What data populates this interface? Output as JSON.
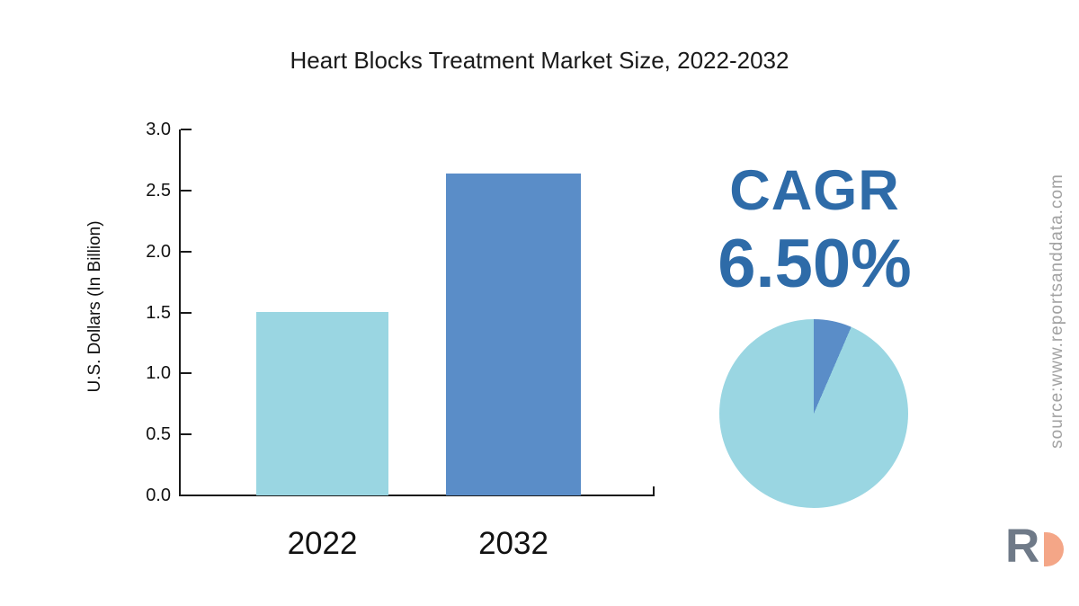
{
  "title": "Heart Blocks Treatment Market Size, 2022-2032",
  "chart_data": [
    {
      "type": "bar",
      "title": "Heart Blocks Treatment Market Size, 2022-2032",
      "categories": [
        "2022",
        "2032"
      ],
      "values": [
        1.5,
        2.64
      ],
      "xlabel": "",
      "ylabel": "U.S. Dollars (In Billion)",
      "ylim": [
        0.0,
        3.0
      ],
      "yticks": [
        "0.0",
        "0.5",
        "1.0",
        "1.5",
        "2.0",
        "2.5",
        "3.0"
      ],
      "grid": false,
      "legend": "none",
      "bar_colors": [
        "#9ad6e2",
        "#5a8dc8"
      ],
      "axis_color": "#1a1a1a"
    },
    {
      "type": "pie",
      "labels": [
        "cagr-share",
        "remainder"
      ],
      "values": [
        6.5,
        93.5
      ],
      "colors": [
        "#5a8dc8",
        "#9ad6e2"
      ],
      "start_angle": "top",
      "direction": "clockwise"
    }
  ],
  "cagr": {
    "label": "CAGR",
    "value": "6.50%",
    "percent": 6.5,
    "text_color": "#2e6ba8"
  },
  "source": {
    "text": "source:www.reportsanddata.com"
  },
  "logo": {
    "letter_r": "R",
    "r_color": "#6f7a88",
    "d_color": "#f4a687"
  }
}
